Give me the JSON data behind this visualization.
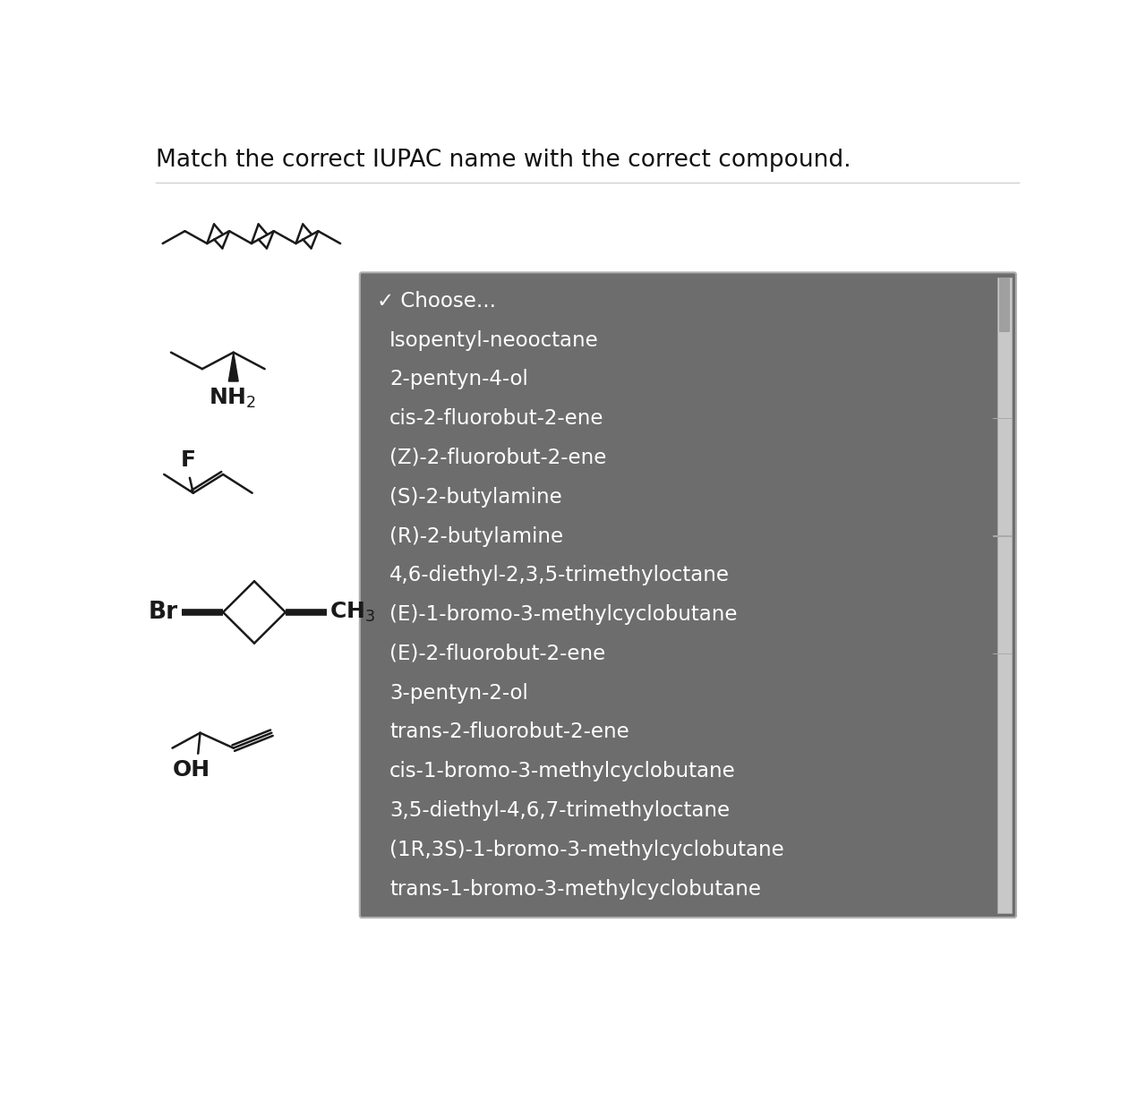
{
  "title": "Match the correct IUPAC name with the correct compound.",
  "title_fontsize": 19,
  "title_color": "#111111",
  "background_color": "#ffffff",
  "dropdown_bg": "#6d6d6d",
  "dropdown_border": "#b0b0b0",
  "dropdown_text_color": "#ffffff",
  "choose_text": "✓ Choose...",
  "dropdown_items": [
    "Isopentyl-neooctane",
    "2-pentyn-4-ol",
    "cis-2-fluorobut-2-ene",
    "(Z)-2-fluorobut-2-ene",
    "(S)-2-butylamine",
    "(R)-2-butylamine",
    "4,6-diethyl-2,3,5-trimethyloctane",
    "(E)-1-bromo-3-methylcyclobutane",
    "(E)-2-fluorobut-2-ene",
    "3-pentyn-2-ol",
    "trans-2-fluorobut-2-ene",
    "cis-1-bromo-3-methylcyclobutane",
    "3,5-diethyl-4,6,7-trimethyloctane",
    "(1R,3S)-1-bromo-3-methylcyclobutane",
    "trans-1-bromo-3-methylcyclobutane"
  ],
  "dropdown_fontsize": 16.5,
  "choose_fontsize": 16.5,
  "line_color": "#1a1a1a",
  "label_fontsize": 17,
  "separator_color": "#d0d0d0",
  "scrollbar_track": "#c0c0c0",
  "scrollbar_bg": "#888888"
}
